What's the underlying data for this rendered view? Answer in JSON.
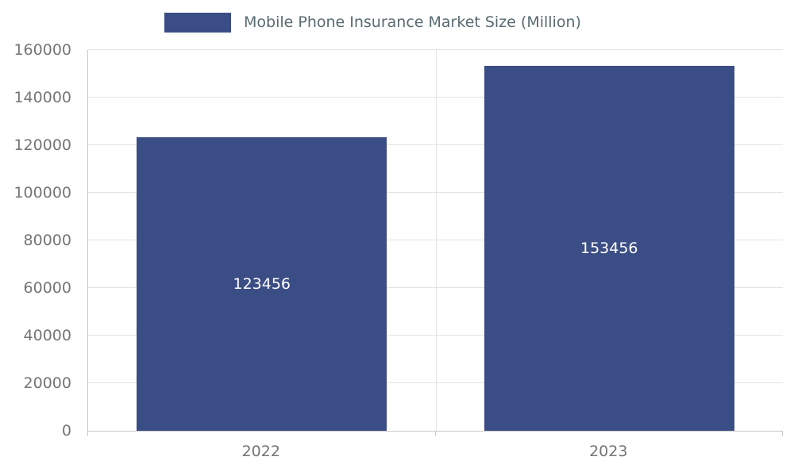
{
  "chart_data": {
    "type": "bar",
    "title": "Mobile Phone Insurance Market Size (Million)",
    "categories": [
      "2022",
      "2023"
    ],
    "values": [
      123456,
      153456
    ],
    "xlabel": "",
    "ylabel": "",
    "ylim": [
      0,
      160000
    ],
    "ytick_step": 20000,
    "grid": true,
    "legend_position": "top",
    "bar_color": "#3b4d85",
    "value_label_color": "#ffffff",
    "title_color": "#586b70",
    "tick_label_color": "#757575",
    "axis_line_color": "#c9c9c9",
    "gridline_color": "#e3e3e3"
  }
}
